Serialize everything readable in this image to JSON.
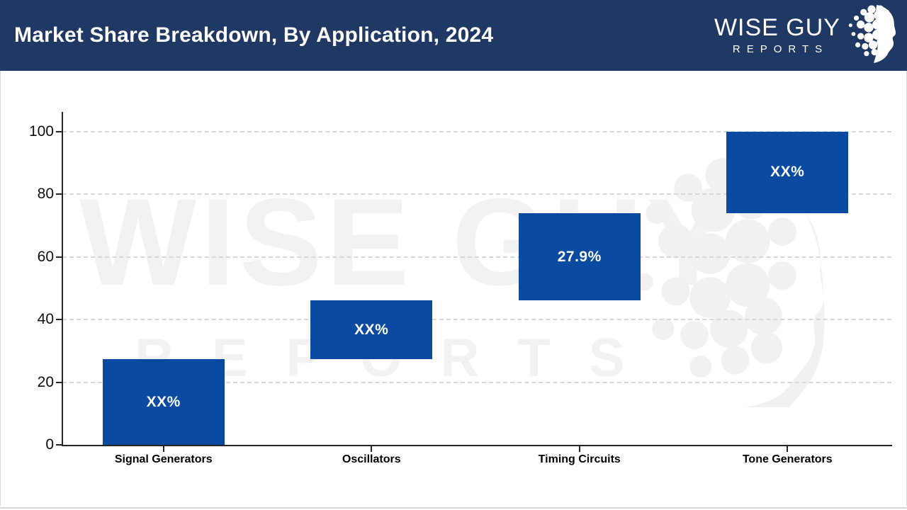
{
  "header": {
    "title": "Market Share Breakdown, By Application, 2024",
    "bg_color": "#1f3864",
    "logo": {
      "line1": "WISE GUY",
      "line2": "REPORTS"
    }
  },
  "watermark": {
    "line1": "WISE GUY",
    "line2": "REPORTS"
  },
  "chart_data": {
    "type": "bar",
    "subtype": "waterfall-stacked-percentage",
    "title": "Market Share Breakdown, By Application, 2024",
    "categories": [
      "Signal Generators",
      "Oscillators",
      "Timing Circuits",
      "Tone Generators"
    ],
    "segments": [
      {
        "category": "Signal Generators",
        "start": 0,
        "end": 27.3,
        "value": 27.3,
        "label": "XX%"
      },
      {
        "category": "Oscillators",
        "start": 27.3,
        "end": 46.1,
        "value": 18.8,
        "label": "XX%"
      },
      {
        "category": "Timing Circuits",
        "start": 46.1,
        "end": 74.0,
        "value": 27.9,
        "label": "27.9%"
      },
      {
        "category": "Tone Generators",
        "start": 74.0,
        "end": 100,
        "value": 26.0,
        "label": "XX%"
      }
    ],
    "yticks": [
      "0",
      "20",
      "40",
      "60",
      "80",
      "100"
    ],
    "ylim": [
      0,
      100
    ],
    "xlabel": "",
    "ylabel": "",
    "bar_color": "#0a4aa1",
    "label_color": "#ffffff",
    "grid": "horizontal-dashed",
    "legend_position": "none"
  }
}
